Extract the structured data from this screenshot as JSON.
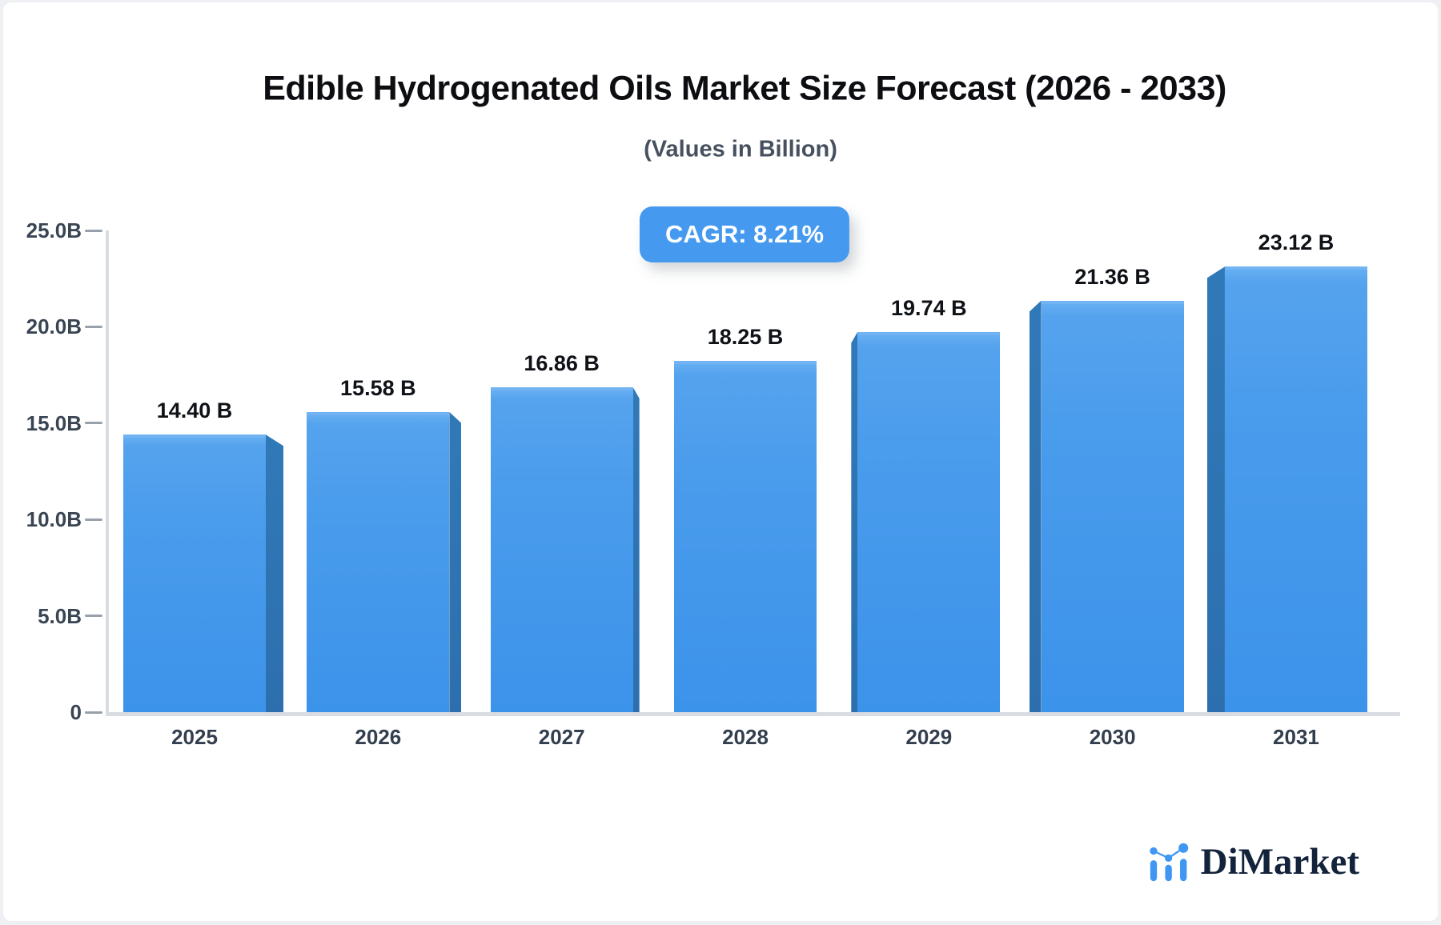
{
  "header": {
    "title": "Edible Hydrogenated Oils Market Size Forecast (2026 - 2033)",
    "subtitle": "(Values in Billion)"
  },
  "cagr_badge": {
    "label": "CAGR: 8.21%",
    "background": "#459af0",
    "text_color": "#ffffff"
  },
  "chart_data": {
    "type": "bar",
    "title": "Edible Hydrogenated Oils Market Size Forecast (2026 - 2033)",
    "subtitle": "(Values in Billion)",
    "categories": [
      "2025",
      "2026",
      "2027",
      "2028",
      "2029",
      "2030",
      "2031"
    ],
    "values": [
      14.4,
      15.58,
      16.86,
      18.25,
      19.74,
      21.36,
      23.12
    ],
    "value_labels": [
      "14.40 B",
      "15.58 B",
      "16.86 B",
      "18.25 B",
      "19.74 B",
      "21.36 B",
      "23.12 B"
    ],
    "cagr": "8.21%",
    "xlabel": "",
    "ylabel": "",
    "ylim": [
      0,
      25
    ],
    "y_ticks": [
      {
        "value": 25,
        "label": "25.0B"
      },
      {
        "value": 20,
        "label": "20.0B"
      },
      {
        "value": 15,
        "label": "15.0B"
      },
      {
        "value": 10,
        "label": "10.0B"
      },
      {
        "value": 5,
        "label": "5.0B"
      },
      {
        "value": 0,
        "label": "0"
      }
    ],
    "grid": false,
    "legend": false,
    "style": "3d-perspective-bars",
    "colors": {
      "bar_face_top": "#65aef2",
      "bar_face_bottom": "#3c93ea",
      "bar_side": "#2d6fae",
      "axis_line": "#d9dce1",
      "tick_dash": "#97a0ab",
      "tick_label": "#3a4553",
      "value_label": "#0f1216"
    }
  },
  "logo": {
    "name": "DiMarket",
    "icon": "bar-chart-logo-icon",
    "text_color": "#13233b",
    "icon_color": "#4097f2"
  }
}
